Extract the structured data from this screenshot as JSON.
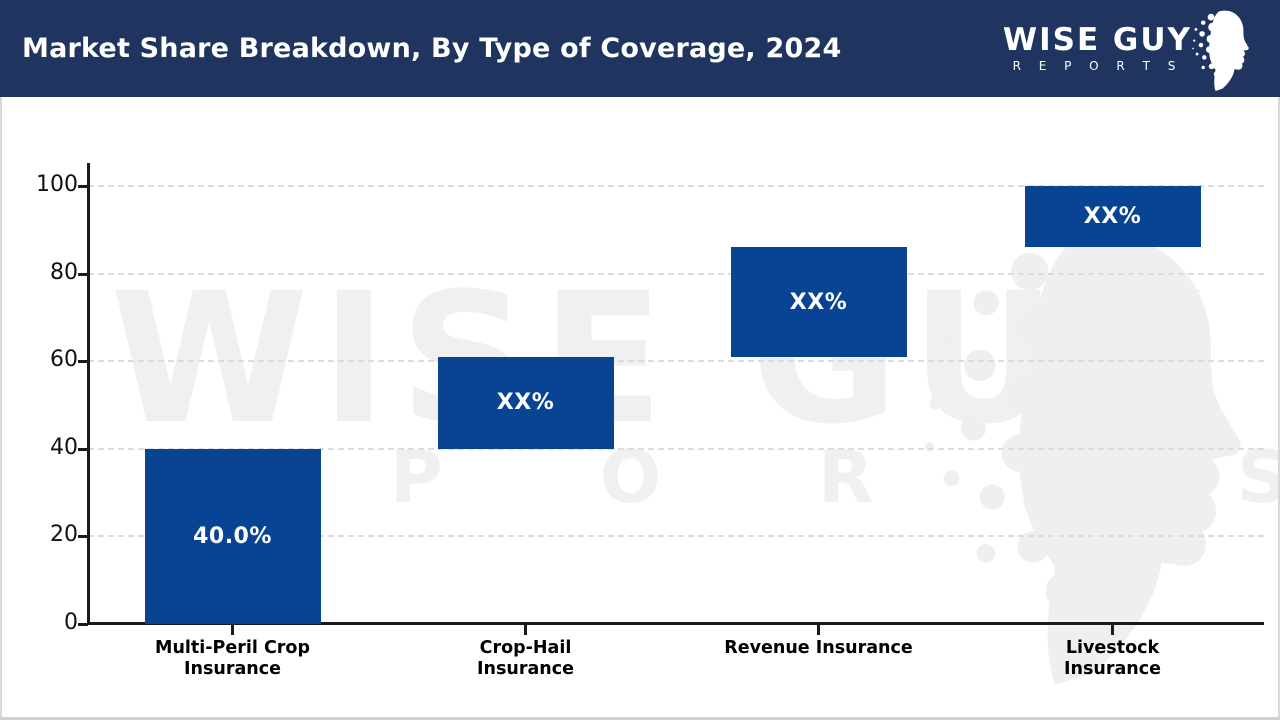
{
  "header": {
    "title": "Market Share Breakdown, By Type of Coverage, 2024",
    "logo": {
      "line1": "WISE GUY",
      "line2": "R E P O R T S"
    }
  },
  "watermark": {
    "line1": "WISE GUY",
    "line2": "P O R T S"
  },
  "colors": {
    "header_bg": "#1f3560",
    "bar_color": "#084394",
    "gridline": "#dcdcdc",
    "axis": "#1a1a1a",
    "watermark": "#f0f0f0",
    "label_on_bar": "#ffffff"
  },
  "chart_data": {
    "type": "bar",
    "subtype": "waterfall",
    "title": "Market Share Breakdown, By Type of Coverage, 2024",
    "xlabel": "",
    "ylabel": "",
    "ylim": [
      0,
      100
    ],
    "yticks": [
      0,
      20,
      40,
      60,
      80,
      100
    ],
    "grid": "horizontal-dashed",
    "legend": "none",
    "categories": [
      "Multi-Peril Crop Insurance",
      "Crop-Hail Insurance",
      "Revenue Insurance",
      "Livestock Insurance"
    ],
    "category_label_lines": [
      [
        "Multi-Peril Crop",
        "Insurance"
      ],
      [
        "Crop-Hail",
        "Insurance"
      ],
      [
        "Revenue Insurance"
      ],
      [
        "Livestock",
        "Insurance"
      ]
    ],
    "segments": [
      {
        "category": "Multi-Peril Crop Insurance",
        "start": 0,
        "end": 40,
        "value": 40,
        "label": "40.0%"
      },
      {
        "category": "Crop-Hail Insurance",
        "start": 40,
        "end": 61,
        "value": 21,
        "label": "XX%"
      },
      {
        "category": "Revenue Insurance",
        "start": 61,
        "end": 86,
        "value": 25,
        "label": "XX%"
      },
      {
        "category": "Livestock Insurance",
        "start": 86,
        "end": 100,
        "value": 14,
        "label": "XX%"
      }
    ]
  }
}
